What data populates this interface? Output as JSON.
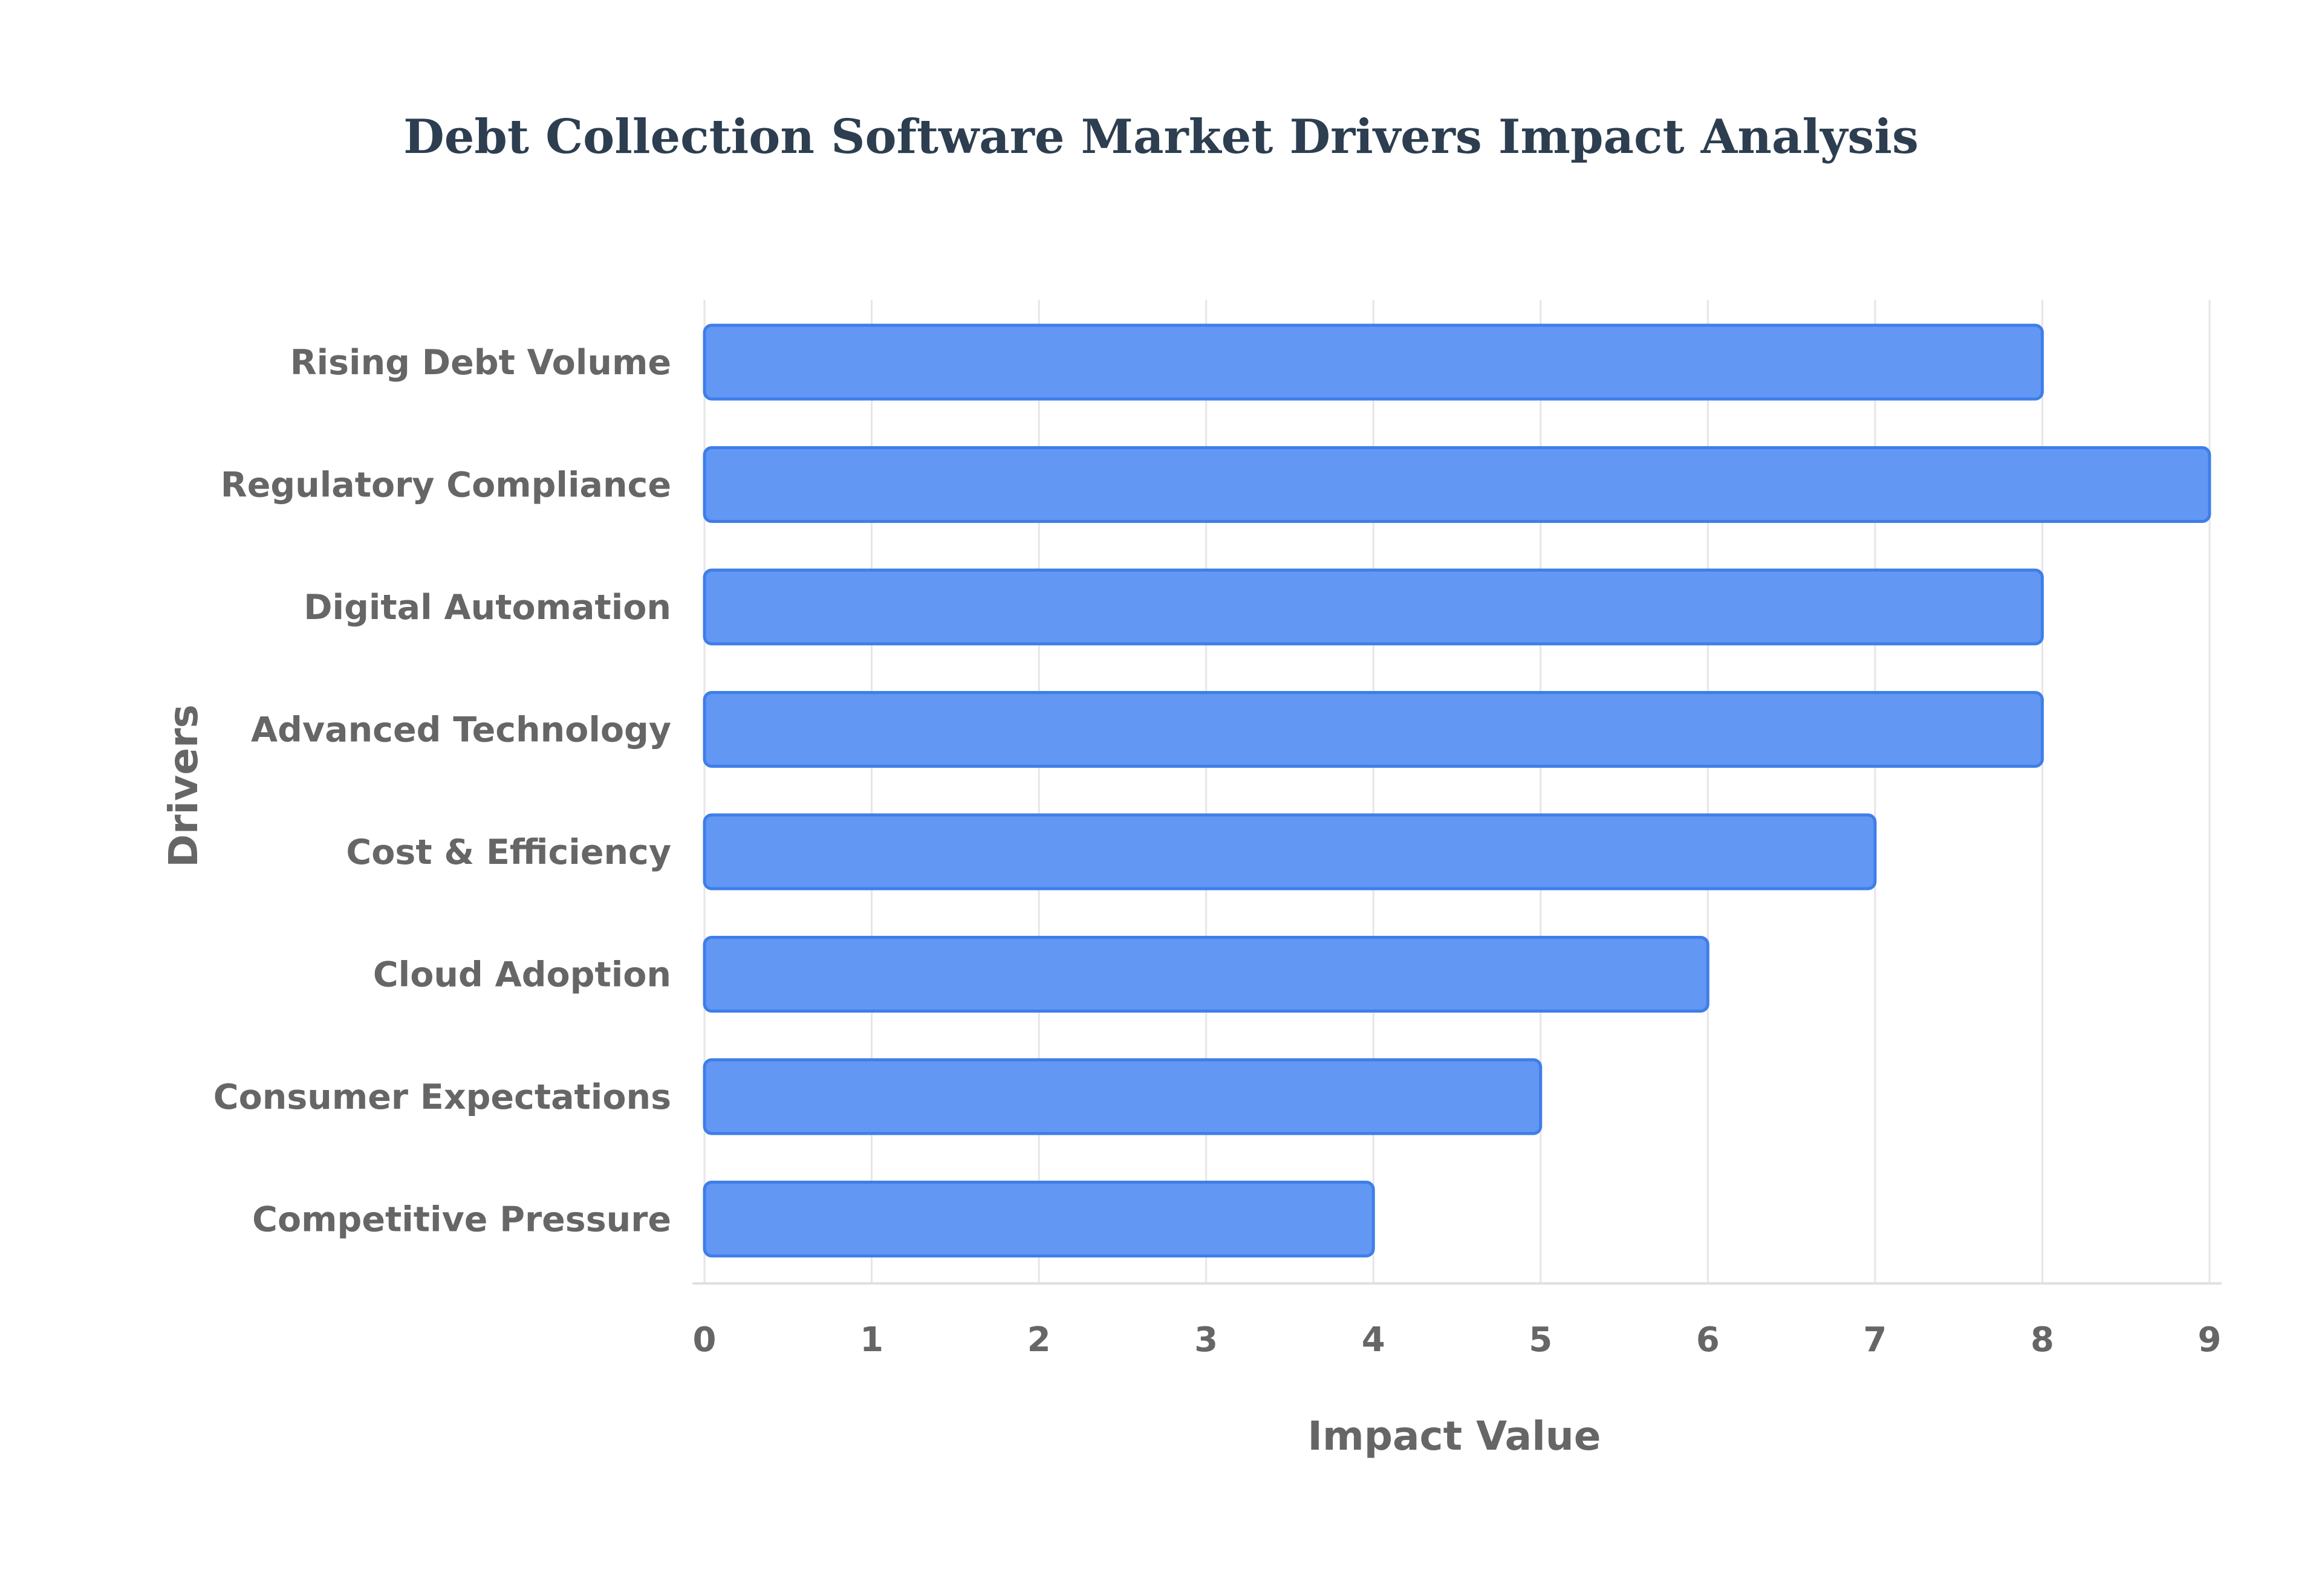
{
  "chart_data": {
    "type": "bar",
    "orientation": "horizontal",
    "title": "Debt Collection Software Market Drivers Impact Analysis",
    "xlabel": "Impact Value",
    "ylabel": "Drivers",
    "categories": [
      "Rising Debt Volume",
      "Regulatory Compliance",
      "Digital Automation",
      "Advanced Technology",
      "Cost & Efficiency",
      "Cloud Adoption",
      "Consumer Expectations",
      "Competitive Pressure"
    ],
    "values": [
      8,
      9,
      8,
      8,
      7,
      6,
      5,
      4
    ],
    "xlim": [
      0,
      9
    ],
    "xticks": [
      "0",
      "1",
      "2",
      "3",
      "4",
      "5",
      "6",
      "7",
      "8",
      "9"
    ],
    "grid": "vertical",
    "legend": "none",
    "colors": {
      "bar_fill": "#6297f4",
      "bar_edge": "#3f7ee8",
      "title": "#2c3e50",
      "labels": "#666666",
      "grid": "#e6e6e6"
    }
  }
}
